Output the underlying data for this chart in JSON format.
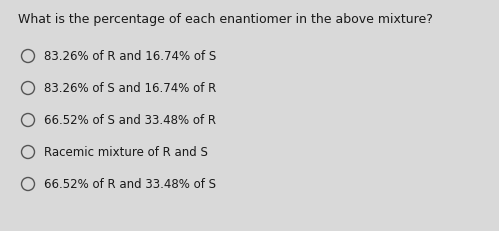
{
  "title": "What is the percentage of each enantiomer in the above mixture?",
  "options": [
    "83.26% of R and 16.74% of S",
    "83.26% of S and 16.74% of R",
    "66.52% of S and 33.48% of R",
    "Racemic mixture of R and S",
    "66.52% of R and 33.48% of S"
  ],
  "bg_color": "#d9d9d9",
  "text_color": "#1a1a1a",
  "title_fontsize": 9.0,
  "option_fontsize": 8.5,
  "circle_color": "#555555"
}
